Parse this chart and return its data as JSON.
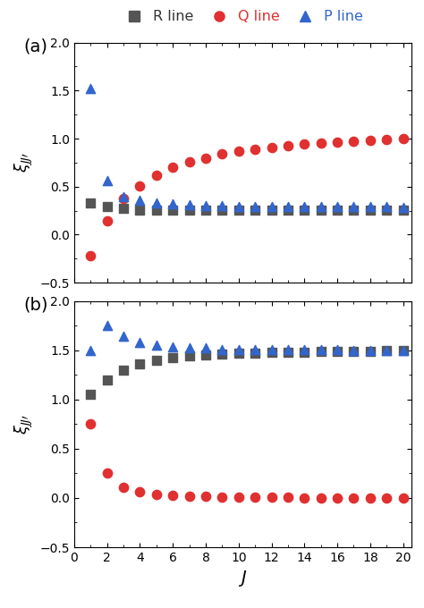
{
  "xlabel": "J",
  "ylabel": "$\\xi_{JJ'}$",
  "legend_labels": [
    "R line",
    "Q line",
    "P line"
  ],
  "R_color": "#555555",
  "Q_color": "#e03030",
  "P_color": "#3366cc",
  "R_label_color": "#333333",
  "Q_label_color": "#e03030",
  "P_label_color": "#3366cc",
  "xlim": [
    0,
    20.5
  ],
  "ylim": [
    -0.5,
    2.0
  ],
  "xticks": [
    0,
    2,
    4,
    6,
    8,
    10,
    12,
    14,
    16,
    18,
    20
  ],
  "yticks": [
    -0.5,
    0.0,
    0.5,
    1.0,
    1.5,
    2.0
  ],
  "marker_size": 55,
  "background_color": "#ffffff",
  "panel_a": {
    "R_J": [
      1,
      2,
      3,
      4,
      5,
      6,
      7,
      8,
      9,
      10,
      11,
      12,
      13,
      14,
      15,
      16,
      17,
      18,
      19,
      20
    ],
    "R_y": [
      0.33,
      0.29,
      0.27,
      0.26,
      0.26,
      0.26,
      0.26,
      0.26,
      0.26,
      0.26,
      0.26,
      0.26,
      0.26,
      0.26,
      0.26,
      0.26,
      0.26,
      0.26,
      0.26,
      0.26
    ],
    "Q_J": [
      1,
      2,
      3,
      4,
      5,
      6,
      7,
      8,
      9,
      10,
      11,
      12,
      13,
      14,
      15,
      16,
      17,
      18,
      19,
      20
    ],
    "Q_y": [
      -0.22,
      0.14,
      0.38,
      0.51,
      0.62,
      0.7,
      0.76,
      0.8,
      0.84,
      0.87,
      0.89,
      0.91,
      0.93,
      0.94,
      0.95,
      0.96,
      0.97,
      0.98,
      0.99,
      1.0
    ],
    "P_J": [
      1,
      2,
      3,
      4,
      5,
      6,
      7,
      8,
      9,
      10,
      11,
      12,
      13,
      14,
      15,
      16,
      17,
      18,
      19,
      20
    ],
    "P_y": [
      1.52,
      0.56,
      0.4,
      0.36,
      0.33,
      0.32,
      0.31,
      0.3,
      0.3,
      0.29,
      0.29,
      0.29,
      0.29,
      0.29,
      0.29,
      0.29,
      0.29,
      0.29,
      0.29,
      0.28
    ]
  },
  "panel_b": {
    "R_J": [
      1,
      2,
      3,
      4,
      5,
      6,
      7,
      8,
      9,
      10,
      11,
      12,
      13,
      14,
      15,
      16,
      17,
      18,
      19,
      20
    ],
    "R_y": [
      1.05,
      1.2,
      1.3,
      1.36,
      1.4,
      1.42,
      1.44,
      1.45,
      1.46,
      1.47,
      1.47,
      1.48,
      1.48,
      1.48,
      1.49,
      1.49,
      1.49,
      1.49,
      1.5,
      1.5
    ],
    "Q_J": [
      1,
      2,
      3,
      4,
      5,
      6,
      7,
      8,
      9,
      10,
      11,
      12,
      13,
      14,
      15,
      16,
      17,
      18,
      19,
      20
    ],
    "Q_y": [
      0.75,
      0.25,
      0.11,
      0.06,
      0.04,
      0.03,
      0.02,
      0.02,
      0.01,
      0.01,
      0.01,
      0.01,
      0.01,
      0.0,
      0.0,
      0.0,
      0.0,
      0.0,
      0.0,
      0.0
    ],
    "P_J": [
      1,
      2,
      3,
      4,
      5,
      6,
      7,
      8,
      9,
      10,
      11,
      12,
      13,
      14,
      15,
      16,
      17,
      18,
      19,
      20
    ],
    "P_y": [
      1.5,
      1.75,
      1.64,
      1.58,
      1.55,
      1.53,
      1.52,
      1.52,
      1.51,
      1.51,
      1.51,
      1.51,
      1.51,
      1.51,
      1.51,
      1.51,
      1.5,
      1.5,
      1.5,
      1.5
    ]
  }
}
